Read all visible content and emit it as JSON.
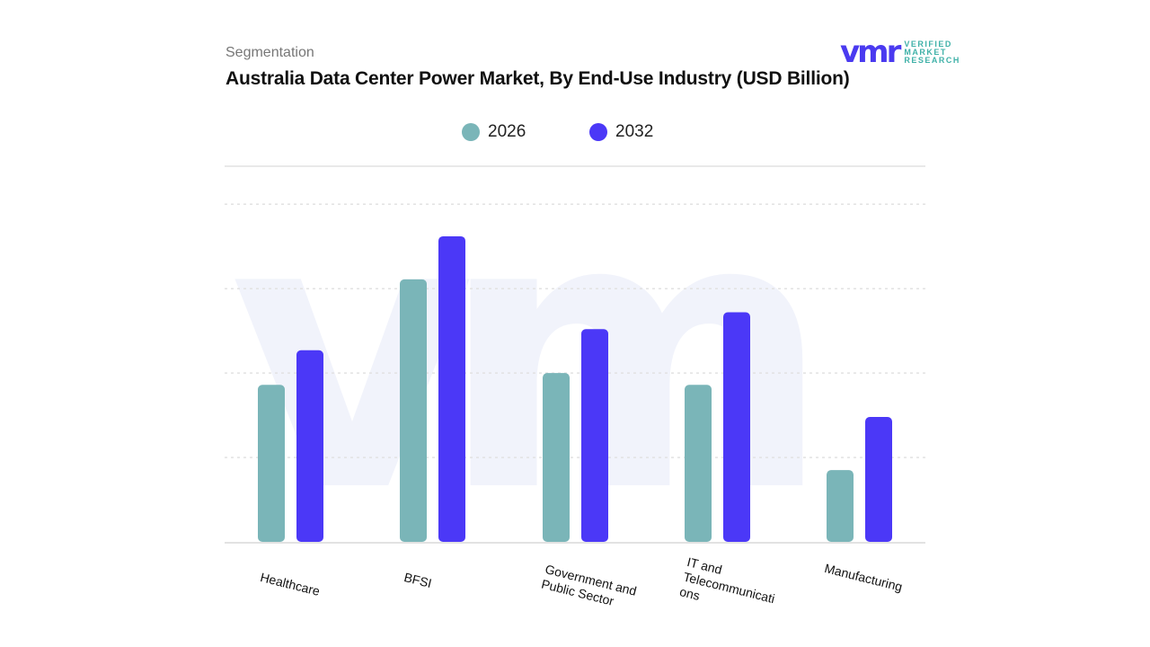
{
  "header": {
    "segment_label": "Segmentation",
    "title": "Australia Data Center Power Market, By End-Use Industry (USD Billion)"
  },
  "logo": {
    "mark": "vmr",
    "line1": "VERIFIED",
    "line2": "MARKET",
    "line3": "RESEARCH"
  },
  "colors": {
    "s2026": "#7ab5b8",
    "s2032": "#4b38f7",
    "grid": "#e2e2e2"
  },
  "chart_data": {
    "type": "bar",
    "title": "Australia Data Center Power Market, By End-Use Industry (USD Billion)",
    "xlabel": "",
    "ylabel": "",
    "categories": [
      "Healthcare",
      "BFSI",
      "Government and Public Sector",
      "IT and Telecommunications",
      "Manufacturing"
    ],
    "category_display": [
      "Healthcare",
      "BFSI",
      "Government and\nPublic Sector",
      "IT and\nTelecommunicati\nons",
      "Manufacturing"
    ],
    "series": [
      {
        "name": "2026",
        "values": [
          1.86,
          3.11,
          2.0,
          1.86,
          0.85
        ]
      },
      {
        "name": "2032",
        "values": [
          2.27,
          3.62,
          2.52,
          2.72,
          1.48
        ]
      }
    ],
    "ylim": [
      0,
      4.45
    ],
    "grid": true,
    "legend": "top-center",
    "note": "No y-axis tick labels shown; values are relative estimates"
  }
}
